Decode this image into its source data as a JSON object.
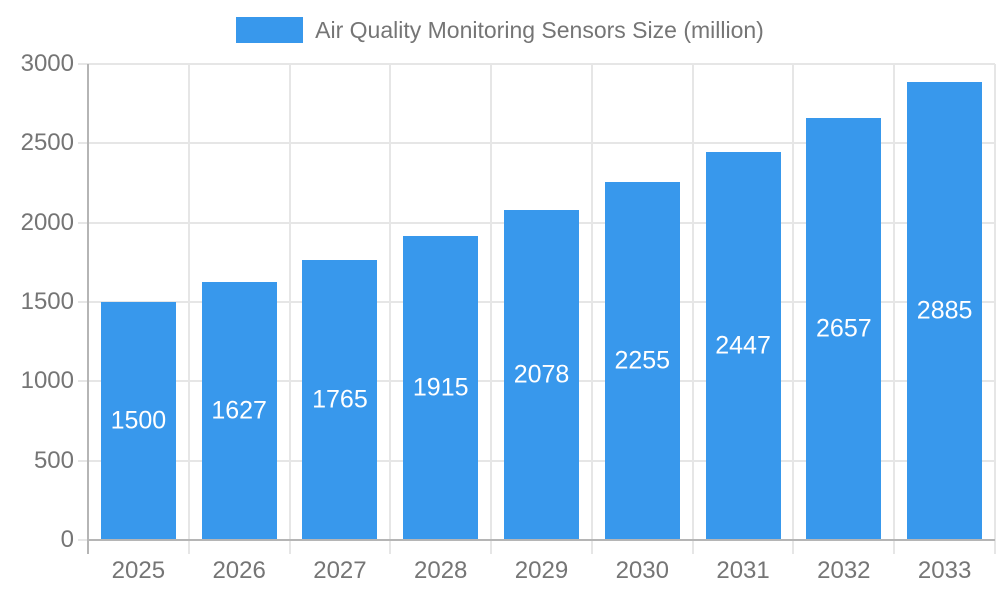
{
  "chart_data": {
    "type": "bar",
    "title": "Air Quality Monitoring Sensors Size (million)",
    "legend_position": "top",
    "categories": [
      "2025",
      "2026",
      "2027",
      "2028",
      "2029",
      "2030",
      "2031",
      "2032",
      "2033"
    ],
    "series": [
      {
        "name": "Air Quality Monitoring Sensors Size (million)",
        "values": [
          1500,
          1627,
          1765,
          1915,
          2078,
          2255,
          2447,
          2657,
          2885
        ]
      }
    ],
    "value_labels": [
      "1500",
      "1627",
      "1765",
      "1915",
      "2078",
      "2255",
      "2447",
      "2657",
      "2885"
    ],
    "xlabel": "",
    "ylabel": "",
    "ylim": [
      0,
      3000
    ],
    "yticks": [
      0,
      500,
      1000,
      1500,
      2000,
      2500,
      3000
    ],
    "grid": true,
    "colors": {
      "bar": "#3898ec",
      "value_label": "#ffffff",
      "axis_text": "#757575",
      "grid_line": "#e6e6e6",
      "axis_line": "#b5b5b5",
      "background": "#ffffff"
    }
  }
}
